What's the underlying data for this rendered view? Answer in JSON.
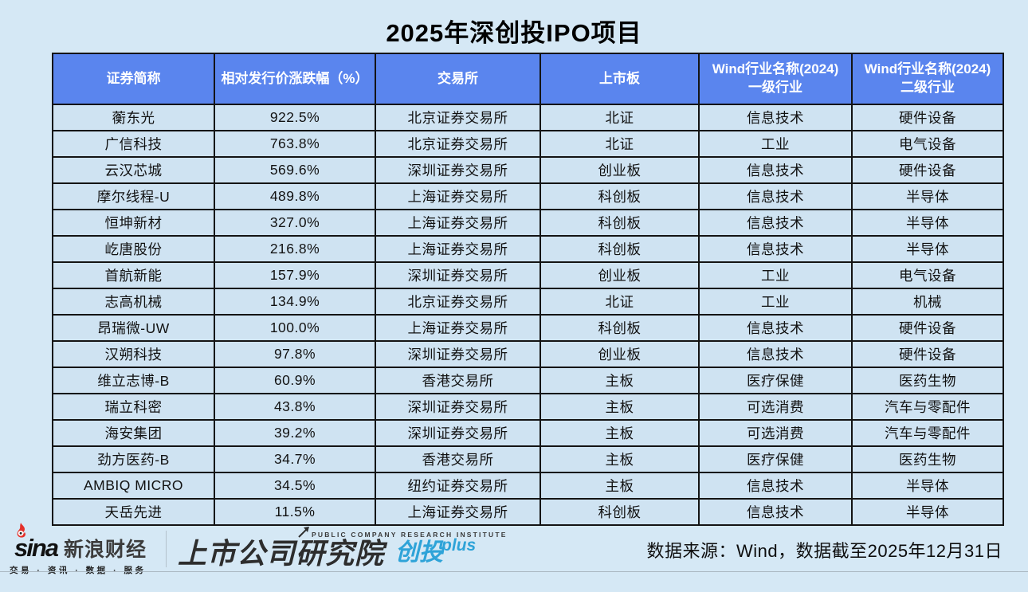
{
  "title": "2025年深创投IPO项目",
  "chart_data": {
    "type": "table",
    "title": "2025年深创投IPO项目",
    "columns": [
      "证券简称",
      "相对发行价涨跌幅（%）",
      "交易所",
      "上市板",
      "Wind行业名称(2024)一级行业",
      "Wind行业名称(2024)二级行业"
    ],
    "rows": [
      [
        "蘅东光",
        "922.5%",
        "北京证券交易所",
        "北证",
        "信息技术",
        "硬件设备"
      ],
      [
        "广信科技",
        "763.8%",
        "北京证券交易所",
        "北证",
        "工业",
        "电气设备"
      ],
      [
        "云汉芯城",
        "569.6%",
        "深圳证券交易所",
        "创业板",
        "信息技术",
        "硬件设备"
      ],
      [
        "摩尔线程-U",
        "489.8%",
        "上海证券交易所",
        "科创板",
        "信息技术",
        "半导体"
      ],
      [
        "恒坤新材",
        "327.0%",
        "上海证券交易所",
        "科创板",
        "信息技术",
        "半导体"
      ],
      [
        "屹唐股份",
        "216.8%",
        "上海证券交易所",
        "科创板",
        "信息技术",
        "半导体"
      ],
      [
        "首航新能",
        "157.9%",
        "深圳证券交易所",
        "创业板",
        "工业",
        "电气设备"
      ],
      [
        "志高机械",
        "134.9%",
        "北京证券交易所",
        "北证",
        "工业",
        "机械"
      ],
      [
        "昂瑞微-UW",
        "100.0%",
        "上海证券交易所",
        "科创板",
        "信息技术",
        "硬件设备"
      ],
      [
        "汉朔科技",
        "97.8%",
        "深圳证券交易所",
        "创业板",
        "信息技术",
        "硬件设备"
      ],
      [
        "维立志博-B",
        "60.9%",
        "香港交易所",
        "主板",
        "医疗保健",
        "医药生物"
      ],
      [
        "瑞立科密",
        "43.8%",
        "深圳证券交易所",
        "主板",
        "可选消费",
        "汽车与零配件"
      ],
      [
        "海安集团",
        "39.2%",
        "深圳证券交易所",
        "主板",
        "可选消费",
        "汽车与零配件"
      ],
      [
        "劲方医药-B",
        "34.7%",
        "香港交易所",
        "主板",
        "医疗保健",
        "医药生物"
      ],
      [
        "AMBIQ MICRO",
        "34.5%",
        "纽约证券交易所",
        "主板",
        "信息技术",
        "半导体"
      ],
      [
        "天岳先进",
        "11.5%",
        "上海证券交易所",
        "科创板",
        "信息技术",
        "半导体"
      ]
    ]
  },
  "table": {
    "headers": [
      "证券简称",
      "相对发行价涨跌幅（%）",
      "交易所",
      "上市板",
      "Wind行业名称(2024)\n一级行业",
      "Wind行业名称(2024)\n二级行业"
    ],
    "rows": [
      {
        "name": "蘅东光",
        "change": "922.5%",
        "exchange": "北京证券交易所",
        "board": "北证",
        "industry1": "信息技术",
        "industry2": "硬件设备"
      },
      {
        "name": "广信科技",
        "change": "763.8%",
        "exchange": "北京证券交易所",
        "board": "北证",
        "industry1": "工业",
        "industry2": "电气设备"
      },
      {
        "name": "云汉芯城",
        "change": "569.6%",
        "exchange": "深圳证券交易所",
        "board": "创业板",
        "industry1": "信息技术",
        "industry2": "硬件设备"
      },
      {
        "name": "摩尔线程-U",
        "change": "489.8%",
        "exchange": "上海证券交易所",
        "board": "科创板",
        "industry1": "信息技术",
        "industry2": "半导体"
      },
      {
        "name": "恒坤新材",
        "change": "327.0%",
        "exchange": "上海证券交易所",
        "board": "科创板",
        "industry1": "信息技术",
        "industry2": "半导体"
      },
      {
        "name": "屹唐股份",
        "change": "216.8%",
        "exchange": "上海证券交易所",
        "board": "科创板",
        "industry1": "信息技术",
        "industry2": "半导体"
      },
      {
        "name": "首航新能",
        "change": "157.9%",
        "exchange": "深圳证券交易所",
        "board": "创业板",
        "industry1": "工业",
        "industry2": "电气设备"
      },
      {
        "name": "志高机械",
        "change": "134.9%",
        "exchange": "北京证券交易所",
        "board": "北证",
        "industry1": "工业",
        "industry2": "机械"
      },
      {
        "name": "昂瑞微-UW",
        "change": "100.0%",
        "exchange": "上海证券交易所",
        "board": "科创板",
        "industry1": "信息技术",
        "industry2": "硬件设备"
      },
      {
        "name": "汉朔科技",
        "change": "97.8%",
        "exchange": "深圳证券交易所",
        "board": "创业板",
        "industry1": "信息技术",
        "industry2": "硬件设备"
      },
      {
        "name": "维立志博-B",
        "change": "60.9%",
        "exchange": "香港交易所",
        "board": "主板",
        "industry1": "医疗保健",
        "industry2": "医药生物"
      },
      {
        "name": "瑞立科密",
        "change": "43.8%",
        "exchange": "深圳证券交易所",
        "board": "主板",
        "industry1": "可选消费",
        "industry2": "汽车与零配件"
      },
      {
        "name": "海安集团",
        "change": "39.2%",
        "exchange": "深圳证券交易所",
        "board": "主板",
        "industry1": "可选消费",
        "industry2": "汽车与零配件"
      },
      {
        "name": "劲方医药-B",
        "change": "34.7%",
        "exchange": "香港交易所",
        "board": "主板",
        "industry1": "医疗保健",
        "industry2": "医药生物"
      },
      {
        "name": "AMBIQ MICRO",
        "change": "34.5%",
        "exchange": "纽约证券交易所",
        "board": "主板",
        "industry1": "信息技术",
        "industry2": "半导体"
      },
      {
        "name": "天岳先进",
        "change": "11.5%",
        "exchange": "上海证券交易所",
        "board": "科创板",
        "industry1": "信息技术",
        "industry2": "半导体"
      }
    ]
  },
  "footer": {
    "sina_logo": "sina",
    "sina_brand": "新浪财经",
    "sina_tagline": "交易 · 资讯 · 数据 · 服务",
    "institute_en": "PUBLIC COMPANY RESEARCH INSTITUTE",
    "institute_cn": "上市公司研究院",
    "plus_cn": "创投",
    "plus_suffix": "plus",
    "source_note": "数据来源：Wind，数据截至2025年12月31日"
  },
  "colors": {
    "page_background": "#d5e8f5",
    "header_background": "#5a85ee",
    "header_text": "#ffffff",
    "cell_background": "#cfe3f2",
    "border": "#141414",
    "sina_red": "#e4302a",
    "plus_blue": "#2ea3d8"
  }
}
